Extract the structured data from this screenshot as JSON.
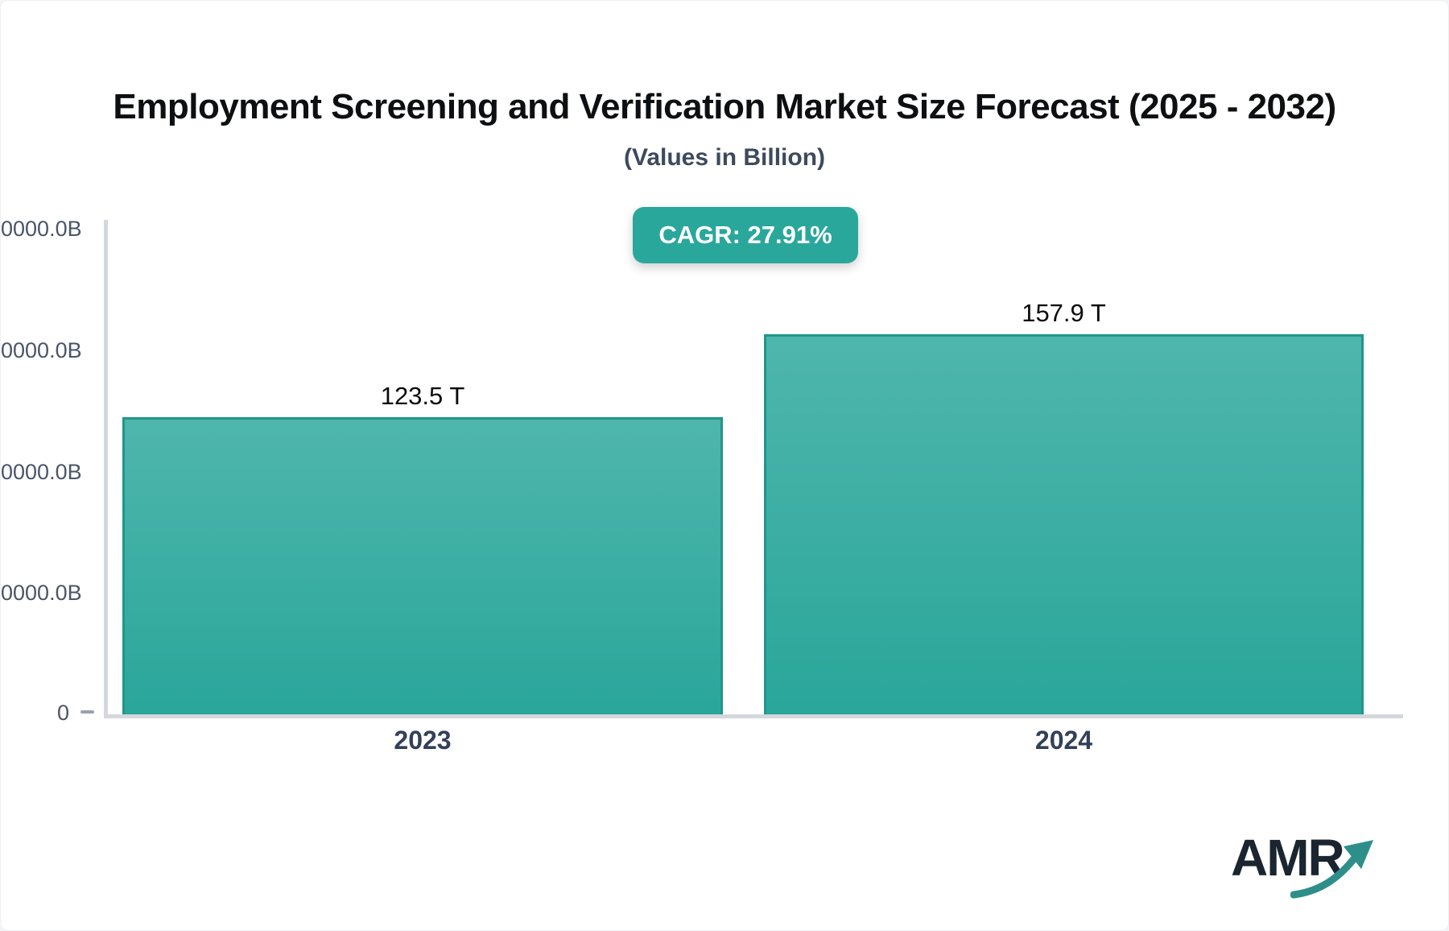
{
  "header": {
    "title": "Employment Screening and Verification Market Size Forecast (2025 - 2032)",
    "subtitle": "(Values in Billion)"
  },
  "badge": {
    "label": "CAGR: 27.91%",
    "color": "#2aa79b"
  },
  "chart_data": {
    "type": "bar",
    "title": "Employment Screening and Verification Market Size Forecast (2025 - 2032)",
    "subtitle": "(Values in Billion)",
    "cagr_percent": 27.91,
    "categories": [
      "2023",
      "2024"
    ],
    "values": [
      123500,
      157900
    ],
    "value_labels": [
      "123.5 T",
      "157.9 T"
    ],
    "unit": "Billion",
    "ylim": [
      0,
      205500
    ],
    "y_tick_interval": 50000,
    "y_tick_labels": [
      "0000.0B",
      "0000.0B",
      "0000.0B",
      "0000.0B",
      "0"
    ],
    "grid": false,
    "legend": false,
    "bar_color_top": "#4fb6ac",
    "bar_color_bottom": "#2aa69a",
    "bar_border_color": "#1f968c",
    "axis_color": "#d4d7de"
  },
  "logo": {
    "text": "AMR",
    "arrow_color": "#2e8e8a"
  }
}
